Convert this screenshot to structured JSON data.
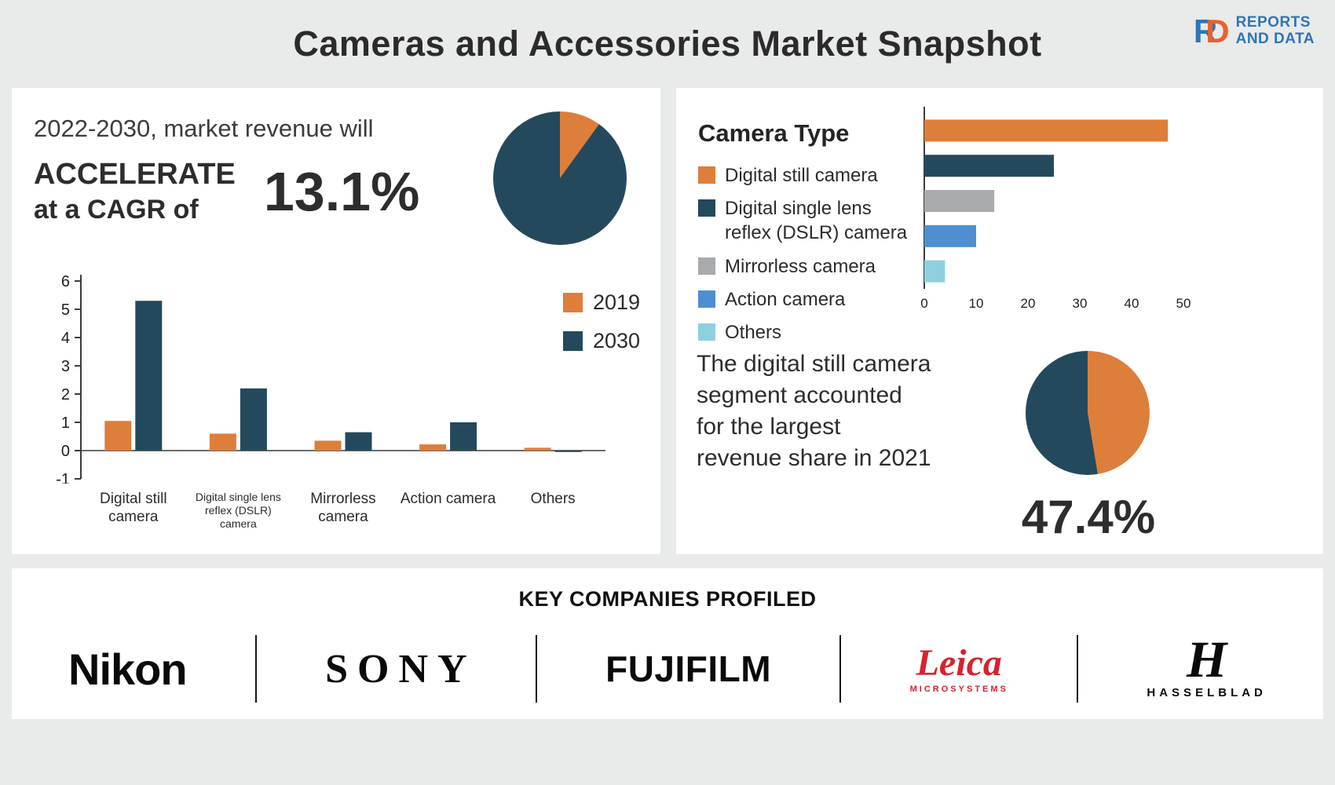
{
  "header": {
    "title": "Cameras and Accessories Market Snapshot",
    "logo": {
      "mark_r": "R",
      "mark_d": "D",
      "line1": "REPORTS",
      "line2": "AND DATA",
      "brand_blue": "#2e75b5",
      "brand_orange": "#e8622b"
    }
  },
  "left_panel": {
    "intro_line1": "2022-2030, market revenue will",
    "intro_line2": "ACCELERATE",
    "intro_line3": "at a CAGR of",
    "cagr_value": "13.1%",
    "legend": [
      {
        "label": "2019",
        "color": "#dd7e3b"
      },
      {
        "label": "2030",
        "color": "#24495c"
      }
    ]
  },
  "right_panel": {
    "chart_title": "Camera Type",
    "legend": [
      {
        "label": "Digital still camera",
        "color": "#dd7e3b"
      },
      {
        "label": "Digital single lens reflex (DSLR) camera",
        "color": "#24495c"
      },
      {
        "label": "Mirrorless camera",
        "color": "#a8aaac"
      },
      {
        "label": "Action camera",
        "color": "#4d8fd1"
      },
      {
        "label": "Others",
        "color": "#8ed0e0"
      }
    ],
    "note": "The digital still camera segment accounted for the largest revenue share in 2021",
    "share_value": "47.4%"
  },
  "companies": {
    "title": "KEY COMPANIES PROFILED",
    "items": [
      {
        "name": "Nikon"
      },
      {
        "name": "SONY"
      },
      {
        "name": "FUJIFILM"
      },
      {
        "name": "Leica",
        "sub": "MICROSYSTEMS"
      },
      {
        "mark": "H",
        "name": "HASSELBLAD"
      }
    ]
  },
  "chart_data": [
    {
      "type": "pie",
      "name": "cagr-pie",
      "title": "",
      "slices": [
        {
          "label": "highlight",
          "value": 10,
          "color": "#dd7e3b"
        },
        {
          "label": "remainder",
          "value": 90,
          "color": "#24495c"
        }
      ]
    },
    {
      "type": "bar",
      "name": "revenue-grouped-bar",
      "title": "Market revenue by camera type, 2019 vs 2030",
      "categories": [
        "Digital still camera",
        "Digital single lens reflex (DSLR) camera",
        "Mirrorless camera",
        "Action camera",
        "Others"
      ],
      "series": [
        {
          "name": "2019",
          "color": "#dd7e3b",
          "values": [
            1.05,
            0.6,
            0.35,
            0.22,
            0.1
          ]
        },
        {
          "name": "2030",
          "color": "#24495c",
          "values": [
            5.3,
            2.2,
            0.65,
            1.0,
            -0.05
          ]
        }
      ],
      "ylim": [
        -1,
        6
      ],
      "yticks": [
        6,
        5,
        4,
        3,
        2,
        1,
        0,
        -1
      ],
      "grid": false,
      "legend_position": "right"
    },
    {
      "type": "bar-horizontal",
      "name": "camera-type-hbar",
      "title": "Camera Type",
      "categories": [
        "Digital still camera",
        "Digital single lens reflex (DSLR) camera",
        "Mirrorless camera",
        "Action camera",
        "Others"
      ],
      "values": [
        47,
        25,
        13.5,
        10,
        4
      ],
      "colors": [
        "#dd7e3b",
        "#24495c",
        "#a8aaac",
        "#4d8fd1",
        "#8ed0e0"
      ],
      "xlim": [
        0,
        50
      ],
      "xticks": [
        0,
        10,
        20,
        30,
        40,
        50
      ],
      "grid": false
    },
    {
      "type": "pie",
      "name": "share-pie",
      "title": "Digital still camera revenue share 2021",
      "slices": [
        {
          "label": "Digital still camera",
          "value": 47.4,
          "color": "#dd7e3b"
        },
        {
          "label": "rest of market",
          "value": 52.6,
          "color": "#24495c"
        }
      ]
    }
  ]
}
